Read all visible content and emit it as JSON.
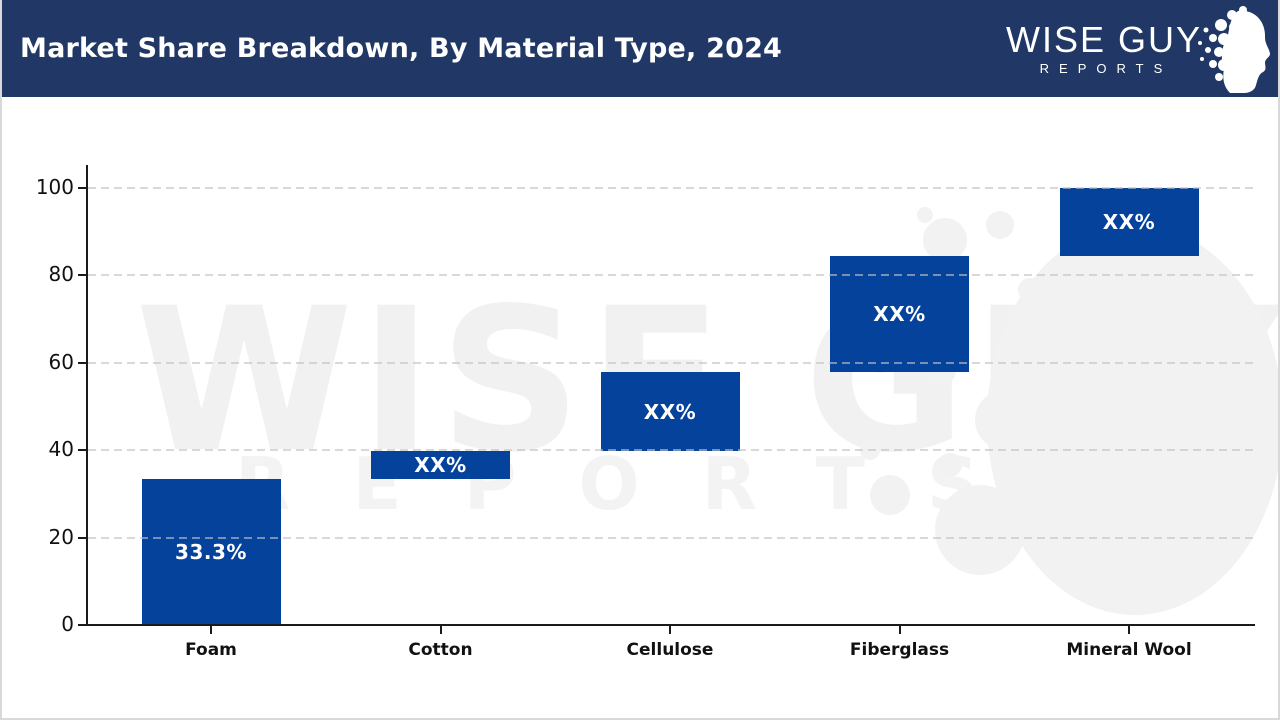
{
  "header": {
    "title": "Market Share Breakdown, By Material Type, 2024",
    "bg_color": "#213866",
    "logo": {
      "line1": "WISE GUY",
      "line2": "REPORTS"
    }
  },
  "watermark": {
    "line1": "WISE GUY",
    "line2": "REPORTS"
  },
  "chart_data": {
    "type": "bar",
    "subtype": "waterfall",
    "title": "Market Share Breakdown, By Material Type, 2024",
    "categories": [
      "Foam",
      "Cotton",
      "Cellulose",
      "Fiberglass",
      "Mineral Wool"
    ],
    "segments": [
      {
        "category": "Foam",
        "start": 0,
        "end": 33.3,
        "value": 33.3,
        "label": "33.3%"
      },
      {
        "category": "Cotton",
        "start": 33.3,
        "end": 39.7,
        "value": 6.4,
        "label": "XX%"
      },
      {
        "category": "Cellulose",
        "start": 39.7,
        "end": 57.9,
        "value": 18.2,
        "label": "XX%"
      },
      {
        "category": "Fiberglass",
        "start": 57.9,
        "end": 84.4,
        "value": 26.5,
        "label": "XX%"
      },
      {
        "category": "Mineral Wool",
        "start": 84.4,
        "end": 100,
        "value": 15.6,
        "label": "XX%"
      }
    ],
    "xlabel": "",
    "ylabel": "",
    "ylim": [
      0,
      105
    ],
    "yticks": [
      0,
      20,
      40,
      60,
      80,
      100
    ],
    "grid": "horizontal dashed, drawn over bars",
    "legend": "none",
    "bar_color": "#05429c",
    "label_color": "#ffffff"
  }
}
